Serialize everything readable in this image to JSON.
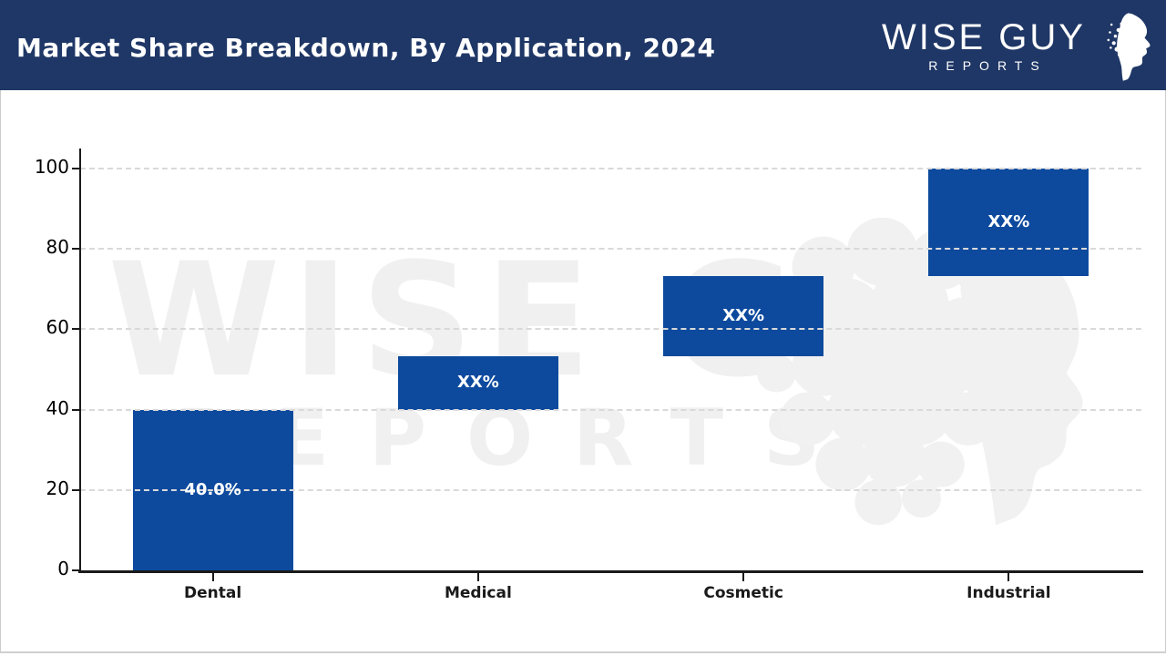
{
  "header": {
    "title": "Market Share Breakdown, By Application, 2024",
    "logo": {
      "brand_top": "WISE GUY",
      "brand_bottom": "REPORTS"
    }
  },
  "watermark": {
    "line1": "WISE GUY",
    "line2": "REPORTS"
  },
  "chart_data": {
    "type": "bar",
    "variant": "waterfall",
    "title": "Market Share Breakdown, By Application, 2024",
    "categories": [
      "Dental",
      "Medical",
      "Cosmetic",
      "Industrial"
    ],
    "bars": [
      {
        "category": "Dental",
        "start": 0,
        "end": 40,
        "label": "40.0%"
      },
      {
        "category": "Medical",
        "start": 40,
        "end": 53.3,
        "label": "XX%"
      },
      {
        "category": "Cosmetic",
        "start": 53.3,
        "end": 73.3,
        "label": "XX%"
      },
      {
        "category": "Industrial",
        "start": 73.3,
        "end": 100,
        "label": "XX%"
      }
    ],
    "yticks": [
      0,
      20,
      40,
      60,
      80,
      100
    ],
    "ylim": [
      0,
      105
    ],
    "xlabel": "",
    "ylabel": "",
    "grid": "horizontal-dashed",
    "legend": "none",
    "colors": {
      "bar": "#0d4a9e",
      "bar_label": "#ffffff",
      "grid": "#d9d9d9",
      "axis": "#1a1a1a",
      "header": "#1f3766",
      "watermark": "#f0f0f0"
    }
  }
}
